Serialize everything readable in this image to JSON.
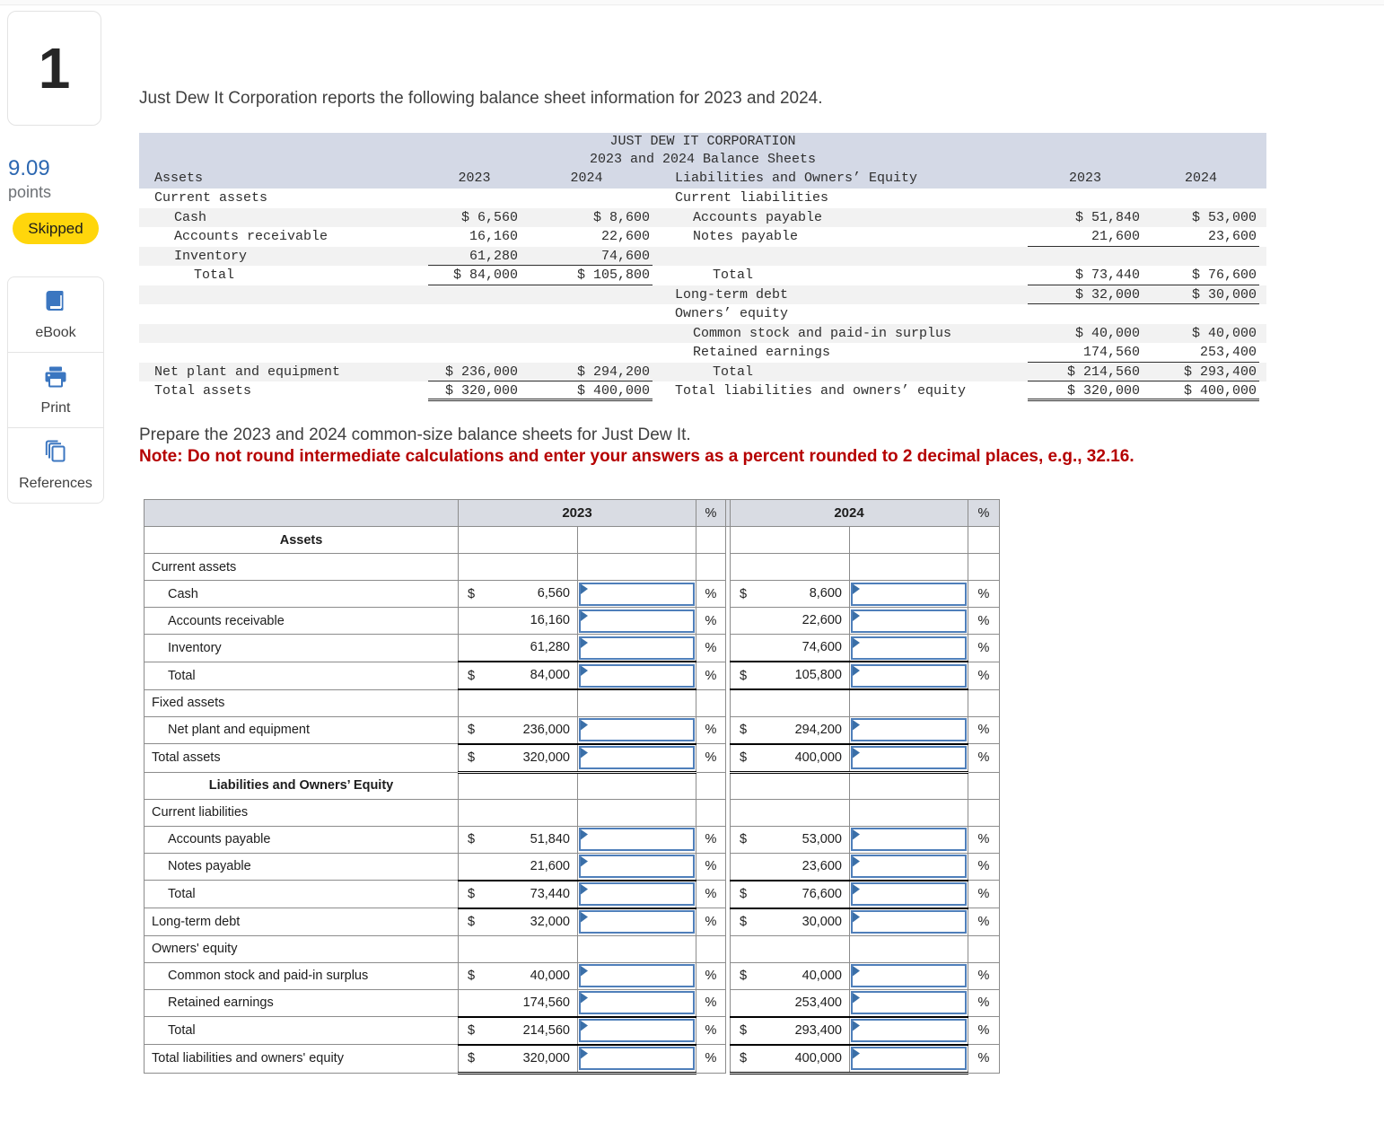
{
  "sidebar": {
    "question_number": "1",
    "points_value": "9.09",
    "points_label": "points",
    "skipped_label": "Skipped",
    "tools": [
      {
        "label": "eBook",
        "icon": "book-icon"
      },
      {
        "label": "Print",
        "icon": "printer-icon"
      },
      {
        "label": "References",
        "icon": "references-icon"
      }
    ],
    "colors": {
      "points_blue": "#2c67b1",
      "skipped_yellow": "#ffd60b",
      "icon_blue": "#3b76c0"
    }
  },
  "intro_text": "Just Dew It Corporation reports the following balance sheet information for 2023 and 2024.",
  "prepare_text": "Prepare the 2023 and 2024 common-size balance sheets for Just Dew It.",
  "note_text": "Note: Do not round intermediate calculations and enter your answers as a percent rounded to 2 decimal places, e.g., 32.16.",
  "balance_sheet": {
    "title_line1": "JUST DEW IT CORPORATION",
    "title_line2": "2023 and 2024 Balance Sheets",
    "header": {
      "assets": "Assets",
      "year1": "2023",
      "year2": "2024",
      "liabilities": "Liabilities and Owners’ Equity",
      "year1_r": "2023",
      "year2_r": "2024"
    },
    "rows": [
      {
        "l": {
          "label": "Current assets",
          "ind": 0
        },
        "r": {
          "label": "Current liabilities",
          "ind": 0
        }
      },
      {
        "l": {
          "label": "Cash",
          "ind": 1,
          "v1": "$ 6,560",
          "v2": "$ 8,600"
        },
        "r": {
          "label": "Accounts payable",
          "ind": 1,
          "v1": "$ 51,840",
          "v2": "$ 53,000"
        }
      },
      {
        "l": {
          "label": "Accounts receivable",
          "ind": 1,
          "v1": "16,160",
          "v2": "22,600"
        },
        "r": {
          "label": "Notes payable",
          "ind": 1,
          "v1": "21,600",
          "v2": "23,600",
          "ul": "single"
        }
      },
      {
        "l": {
          "label": "Inventory",
          "ind": 1,
          "v1": "61,280",
          "v2": "74,600",
          "ul": "single"
        },
        "r": {}
      },
      {
        "l": {
          "label": "Total",
          "ind": 2,
          "v1": "$ 84,000",
          "v2": "$ 105,800",
          "ul": "single"
        },
        "r": {
          "label": "Total",
          "ind": 2,
          "v1": "$ 73,440",
          "v2": "$ 76,600",
          "ul": "single"
        }
      },
      {
        "l": {},
        "r": {
          "label": "Long-term debt",
          "ind": 0,
          "v1": "$ 32,000",
          "v2": "$ 30,000",
          "ul": "single"
        }
      },
      {
        "l": {},
        "r": {
          "label": "Owners’ equity",
          "ind": 0
        }
      },
      {
        "l": {},
        "r": {
          "label": "Common stock and paid-in surplus",
          "ind": 1,
          "v1": "$ 40,000",
          "v2": "$ 40,000"
        }
      },
      {
        "l": {},
        "r": {
          "label": "Retained earnings",
          "ind": 1,
          "v1": "174,560",
          "v2": "253,400",
          "ul": "single"
        }
      },
      {
        "l": {
          "label": "Net plant and equipment",
          "ind": 0,
          "v1": "$ 236,000",
          "v2": "$ 294,200",
          "ul": "single"
        },
        "r": {
          "label": "Total",
          "ind": 2,
          "v1": "$ 214,560",
          "v2": "$ 293,400",
          "ul": "single"
        }
      },
      {
        "l": {
          "label": "Total assets",
          "ind": 0,
          "v1": "$ 320,000",
          "v2": "$ 400,000",
          "ul": "double"
        },
        "r": {
          "label": "Total liabilities and owners’ equity",
          "ind": 0,
          "v1": "$ 320,000",
          "v2": "$ 400,000",
          "ul": "double"
        }
      }
    ]
  },
  "worksheet": {
    "header": {
      "year1": "2023",
      "year2": "2024",
      "pct": "%"
    },
    "percent_symbol": "%",
    "rows": [
      {
        "label": "Assets",
        "style": "section-center"
      },
      {
        "label": "Current assets",
        "ind": 0
      },
      {
        "label": "Cash",
        "ind": 1,
        "d1": "$",
        "v1": "6,560",
        "d2": "$",
        "v2": "8,600",
        "input": true
      },
      {
        "label": "Accounts receivable",
        "ind": 1,
        "v1": "16,160",
        "v2": "22,600",
        "input": true
      },
      {
        "label": "Inventory",
        "ind": 1,
        "v1": "61,280",
        "v2": "74,600",
        "input": true
      },
      {
        "label": "Total",
        "ind": 1,
        "d1": "$",
        "v1": "84,000",
        "d2": "$",
        "v2": "105,800",
        "input": true,
        "ht": true,
        "hb": true
      },
      {
        "label": "Fixed assets",
        "ind": 0
      },
      {
        "label": "Net plant and equipment",
        "ind": 1,
        "d1": "$",
        "v1": "236,000",
        "d2": "$",
        "v2": "294,200",
        "input": true
      },
      {
        "label": "Total assets",
        "ind": 0,
        "d1": "$",
        "v1": "320,000",
        "d2": "$",
        "v2": "400,000",
        "input": true,
        "ht": true,
        "db": true
      },
      {
        "label": "Liabilities and Owners’ Equity",
        "style": "section-center"
      },
      {
        "label": "Current liabilities",
        "ind": 0
      },
      {
        "label": "Accounts payable",
        "ind": 1,
        "d1": "$",
        "v1": "51,840",
        "d2": "$",
        "v2": "53,000",
        "input": true
      },
      {
        "label": "Notes payable",
        "ind": 1,
        "v1": "21,600",
        "v2": "23,600",
        "input": true
      },
      {
        "label": "Total",
        "ind": 1,
        "d1": "$",
        "v1": "73,440",
        "d2": "$",
        "v2": "76,600",
        "input": true,
        "ht": true,
        "hb": true
      },
      {
        "label": "Long-term debt",
        "ind": 0,
        "d1": "$",
        "v1": "32,000",
        "d2": "$",
        "v2": "30,000",
        "input": true
      },
      {
        "label": "Owners' equity",
        "ind": 0
      },
      {
        "label": "Common stock and paid-in surplus",
        "ind": 1,
        "d1": "$",
        "v1": "40,000",
        "d2": "$",
        "v2": "40,000",
        "input": true
      },
      {
        "label": "Retained earnings",
        "ind": 1,
        "v1": "174,560",
        "v2": "253,400",
        "input": true
      },
      {
        "label": "Total",
        "ind": 1,
        "d1": "$",
        "v1": "214,560",
        "d2": "$",
        "v2": "293,400",
        "input": true,
        "ht": true,
        "hb": true
      },
      {
        "label": "Total liabilities and owners' equity",
        "ind": 0,
        "d1": "$",
        "v1": "320,000",
        "d2": "$",
        "v2": "400,000",
        "input": true,
        "db": true
      }
    ]
  }
}
